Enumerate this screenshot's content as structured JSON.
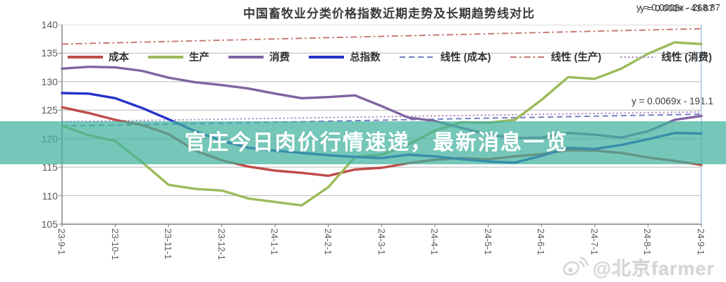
{
  "title": "中国畜牧业分类价格指数近期走势及长期趋势线对比",
  "overlay_banner": {
    "text": "官庄今日肉价行情速递，最新消息一览"
  },
  "watermark": {
    "icon": "weibo-icon",
    "text": "@北京farmer"
  },
  "equations": {
    "top_overlap_a": "y = 0.0009x - 268.87",
    "top_overlap_b": "y = 0.002x - 43.87",
    "mid": "y = 0.0069x - 191.1"
  },
  "colors": {
    "cost": "#BE4B48",
    "production": "#9BBB59",
    "consumption": "#8064A2",
    "total_index": "#2433C9",
    "trend_cost": "#6C7FC0",
    "trend_production": "#C4766E",
    "trend_consumption": "#B394C4",
    "grid": "#b8b8b8",
    "axis": "#7f7f7f",
    "plot_right_border": "#A8C8E4",
    "banner": "rgba(64,178,158,0.72)",
    "label": "#595959"
  },
  "chart_data": {
    "type": "line",
    "title": "中国畜牧业分类价格指数近期走势及长期趋势线对比",
    "xlabel": "",
    "ylabel": "",
    "ylim": [
      105,
      140
    ],
    "y_ticks": [
      140,
      135,
      130,
      125,
      120,
      115,
      110,
      105
    ],
    "grid": true,
    "legend_position": "top-inside",
    "x_tick_labels": [
      "23-9-1",
      "23-10-1",
      "23-11-1",
      "23-12-1",
      "24-1-1",
      "24-2-1",
      "24-3-1",
      "24-4-1",
      "24-5-1",
      "24-6-1",
      "24-7-1",
      "24-8-1",
      "24-9-1"
    ],
    "sampling_note": "values sampled at half-month steps from 23-9-1 to 24-9-1",
    "series": [
      {
        "name": "成本",
        "color": "#BE4B48",
        "style": "solid",
        "values": [
          125.5,
          124.5,
          123.3,
          122.4,
          120.8,
          117.9,
          116.2,
          115.1,
          114.4,
          114.0,
          113.5,
          114.6,
          114.9,
          115.7,
          116.3,
          116.6,
          116.4,
          116.9,
          117.3,
          118.0,
          117.9,
          117.5,
          116.7,
          116.1,
          115.4
        ]
      },
      {
        "name": "生产",
        "color": "#9BBB59",
        "style": "solid",
        "values": [
          122.3,
          120.6,
          119.6,
          115.9,
          111.9,
          111.2,
          110.9,
          109.5,
          108.9,
          108.3,
          111.5,
          116.8,
          117.2,
          119.0,
          121.4,
          122.9,
          122.8,
          123.3,
          126.8,
          130.8,
          130.5,
          132.3,
          134.9,
          136.9,
          136.6
        ]
      },
      {
        "name": "消费",
        "color": "#8064A2",
        "style": "solid",
        "values": [
          132.3,
          132.6,
          132.5,
          131.9,
          130.7,
          129.9,
          129.4,
          128.8,
          127.9,
          127.1,
          127.3,
          127.6,
          125.7,
          123.7,
          123.1,
          121.9,
          120.7,
          120.1,
          120.2,
          121.0,
          120.7,
          120.2,
          121.3,
          123.3,
          124.0
        ]
      },
      {
        "name": "总指数",
        "color": "#2433C9",
        "style": "solid",
        "values": [
          128.0,
          127.9,
          127.1,
          125.4,
          123.4,
          121.3,
          119.6,
          118.4,
          117.9,
          117.5,
          117.1,
          116.8,
          116.6,
          117.2,
          116.9,
          116.4,
          116.0,
          115.8,
          117.0,
          118.4,
          118.2,
          118.9,
          119.9,
          121.0,
          120.9
        ]
      }
    ],
    "trend_lines": [
      {
        "name": "线性 (成本)",
        "color": "#6C7FC0",
        "dash": "dashed",
        "start": 122.2,
        "end": 124.3
      },
      {
        "name": "线性 (生产)",
        "color": "#C4766E",
        "dash": "dash-dot",
        "start": 136.6,
        "end": 139.3
      },
      {
        "name": "线性 (消费)",
        "color": "#B394C4",
        "dash": "dotted",
        "start": 123.0,
        "end": 124.7
      }
    ]
  }
}
